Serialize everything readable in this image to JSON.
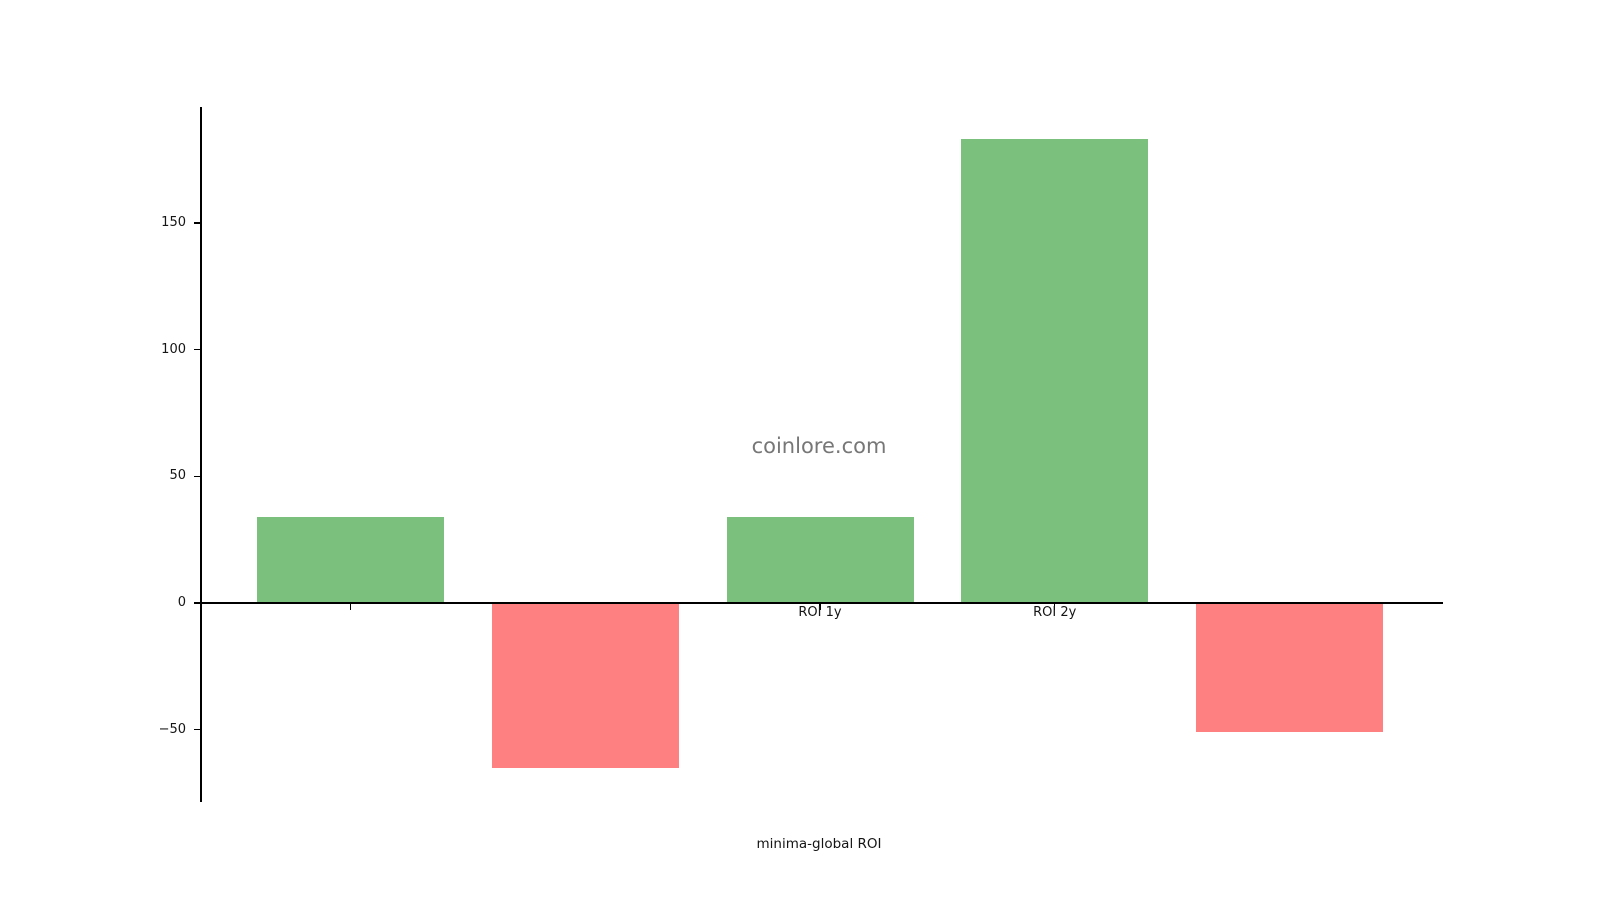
{
  "chart_data": {
    "type": "bar",
    "categories": [
      "",
      "",
      "ROI 1y",
      "ROI 2y",
      ""
    ],
    "values": [
      34,
      -65,
      34,
      183,
      -51
    ],
    "bar_colors": [
      "#7cc07e",
      "#ff8080",
      "#7cc07e",
      "#7cc07e",
      "#ff8080"
    ],
    "positive_color": "#7cc07e",
    "negative_color": "#ff8080",
    "title": "",
    "xlabel": "minima-global ROI",
    "ylabel": "",
    "ylim": [
      -79,
      196
    ],
    "yticks": [
      {
        "value": -50,
        "label": "−50"
      },
      {
        "value": 0,
        "label": "0"
      },
      {
        "value": 50,
        "label": "50"
      },
      {
        "value": 100,
        "label": "100"
      },
      {
        "value": 150,
        "label": "150"
      }
    ],
    "grid": false,
    "legend": false,
    "watermark": "coinlore.com",
    "axis_color": "#000000",
    "tick_label_color": "#151515",
    "watermark_color": "#777777"
  }
}
